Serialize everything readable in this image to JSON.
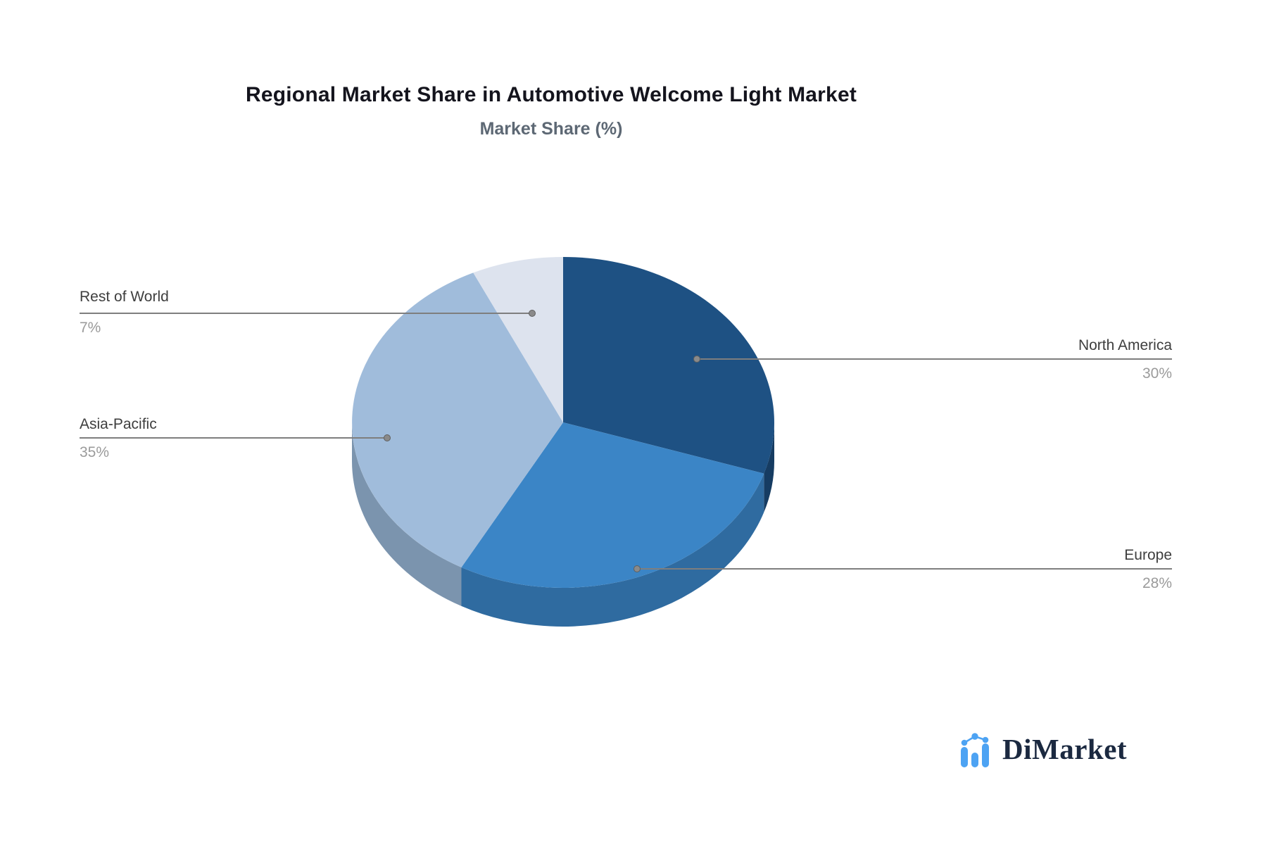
{
  "header": {
    "title": "Regional Market Share in Automotive Welcome Light Market",
    "subtitle": "Market Share (%)"
  },
  "chart_data": {
    "type": "pie",
    "title": "Regional Market Share in Automotive Welcome Light Market",
    "subtitle": "Market Share (%)",
    "unit": "%",
    "effect": "3d",
    "direction": "clockwise",
    "start_angle_deg": 0,
    "legend_position": "none",
    "label_style": "callout-lines",
    "slices": [
      {
        "label": "North America",
        "value": 30,
        "display": "30%",
        "color": "#1e5183",
        "side_color": "#163c62"
      },
      {
        "label": "Europe",
        "value": 28,
        "display": "28%",
        "color": "#3b85c6",
        "side_color": "#2f6ba0"
      },
      {
        "label": "Asia-Pacific",
        "value": 35,
        "display": "35%",
        "color": "#a0bcdb",
        "side_color": "#7b94ae"
      },
      {
        "label": "Rest of World",
        "value": 7,
        "display": "7%",
        "color": "#dde3ee",
        "side_color": "#b9c5d6"
      }
    ]
  },
  "branding": {
    "logo_text": "DiMarket",
    "logo_text_color": "#1b2940",
    "logo_accent_color": "#4da3f3"
  },
  "colors": {
    "background": "#ffffff",
    "connector_line": "#7e7e7e",
    "connector_dot": "#8a8a8a",
    "label_text": "#3e3e3e",
    "value_text": "#9b9b9b",
    "title_text": "#14141d",
    "subtitle_text": "#5d6874"
  }
}
